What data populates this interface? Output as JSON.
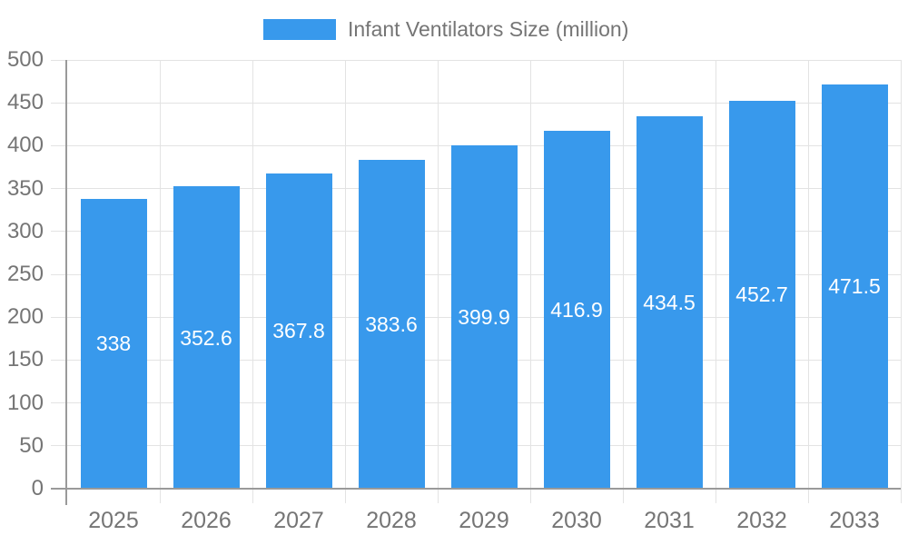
{
  "legend": {
    "series_label": "Infant Ventilators Size (million)",
    "swatch_icon": "legend-color-swatch"
  },
  "colors": {
    "bar": "#3899EC",
    "axis": "#9a9a9a",
    "gridline": "#e3e3e3",
    "tick_text": "#757575",
    "value_text": "#ffffff",
    "background": "#ffffff"
  },
  "chart_data": {
    "type": "bar",
    "title": "Infant Ventilators Size (million)",
    "categories": [
      "2025",
      "2026",
      "2027",
      "2028",
      "2029",
      "2030",
      "2031",
      "2032",
      "2033"
    ],
    "values": [
      338,
      352.6,
      367.8,
      383.6,
      399.9,
      416.9,
      434.5,
      452.7,
      471.5
    ],
    "value_labels": [
      "338",
      "352.6",
      "367.8",
      "383.6",
      "399.9",
      "416.9",
      "434.5",
      "452.7",
      "471.5"
    ],
    "series": [
      {
        "name": "Infant Ventilators Size (million)",
        "values": [
          338,
          352.6,
          367.8,
          383.6,
          399.9,
          416.9,
          434.5,
          452.7,
          471.5
        ]
      }
    ],
    "xlabel": "",
    "ylabel": "",
    "ylim": [
      0,
      500
    ],
    "y_tick_step": 50,
    "y_ticks": [
      "0",
      "50",
      "100",
      "150",
      "200",
      "250",
      "300",
      "350",
      "400",
      "450",
      "500"
    ],
    "grid": true,
    "legend_position": "top-center",
    "value_label_position": "inside-center"
  }
}
